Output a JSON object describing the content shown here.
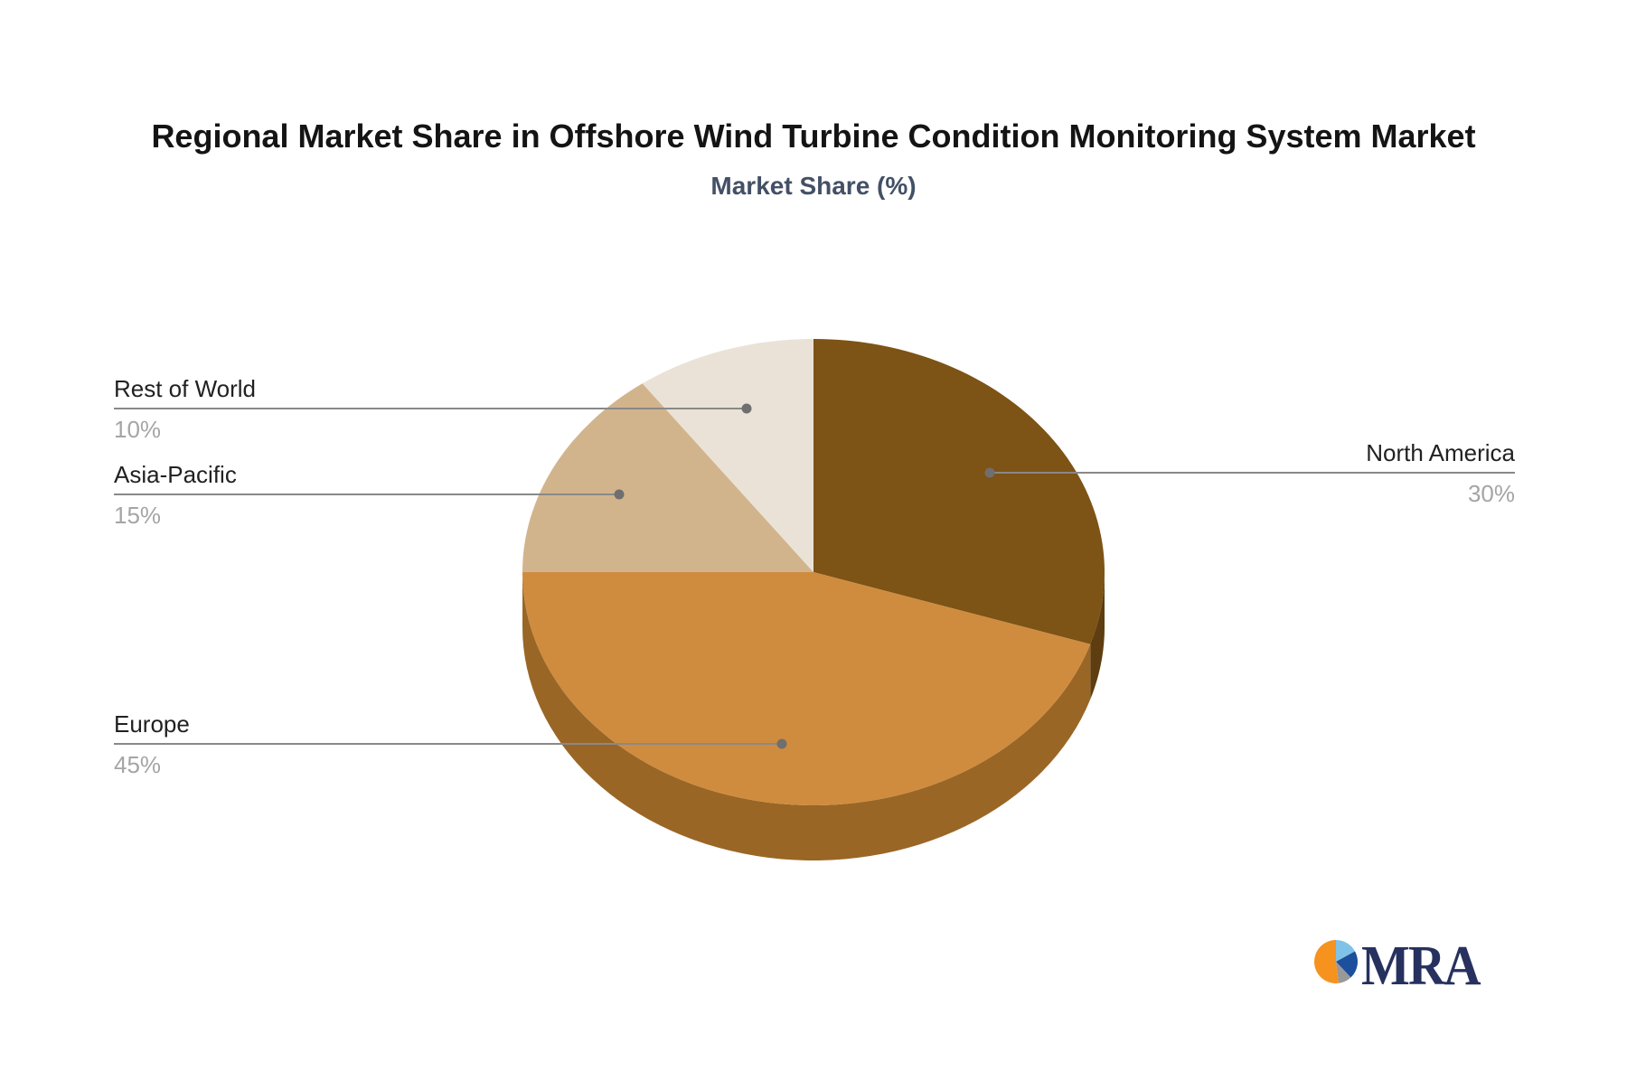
{
  "chart_data": {
    "type": "pie",
    "style": "3d-pie",
    "title": "Regional Market Share in Offshore Wind Turbine Condition Monitoring System Market",
    "subtitle": "Market Share (%)",
    "unit": "%",
    "legend_position": "callout-leader-lines",
    "slices": [
      {
        "label": "North America",
        "value": 30,
        "display": "30%",
        "color": "#7D5316",
        "side_color": "#5E3D10"
      },
      {
        "label": "Europe",
        "value": 45,
        "display": "45%",
        "color": "#CF8C3E",
        "side_color": "#9A6626"
      },
      {
        "label": "Asia-Pacific",
        "value": 15,
        "display": "15%",
        "color": "#D2B48C",
        "side_color": "#A8885E"
      },
      {
        "label": "Rest of World",
        "value": 10,
        "display": "10%",
        "color": "#EAE2D6",
        "side_color": "#BDB0A0"
      }
    ],
    "label_color": "#212121",
    "value_color": "#A5A5A5",
    "leader_line_color": "#898989",
    "leader_dot_color": "#6F6F6F"
  },
  "branding": {
    "logo_text": "MRA",
    "logo_text_color": "#27315F",
    "logo_pie_colors": [
      "#7EC3E7",
      "#1D4F9C",
      "#999999",
      "#F6921E"
    ],
    "logo_pie_values": [
      17,
      21,
      10,
      52
    ]
  }
}
